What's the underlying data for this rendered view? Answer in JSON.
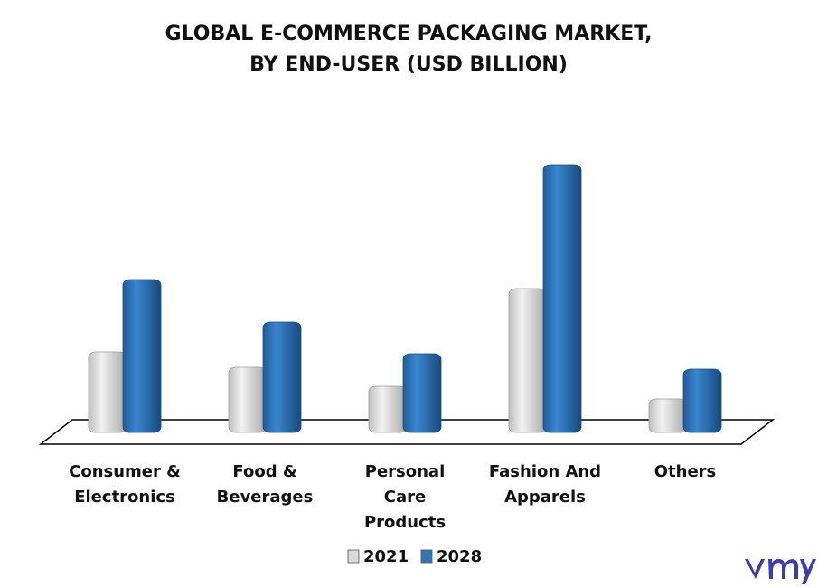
{
  "chart_data": {
    "type": "bar",
    "title": "GLOBAL E-COMMERCE PACKAGING MARKET,",
    "subtitle": "BY END-USER (USD BILLION)",
    "categories": [
      "Consumer & Electronics",
      "Food & Beverages",
      "Personal Care Products",
      "Fashion And Apparels",
      "Others"
    ],
    "series": [
      {
        "name": "2021",
        "color": "#d9d9d9",
        "values": [
          8.3,
          6.6,
          4.5,
          15.3,
          3.1
        ]
      },
      {
        "name": "2028",
        "color": "#2e75b6",
        "values": [
          16.3,
          11.6,
          8.1,
          29,
          6.4
        ]
      }
    ],
    "ylim": [
      0,
      30
    ]
  }
}
